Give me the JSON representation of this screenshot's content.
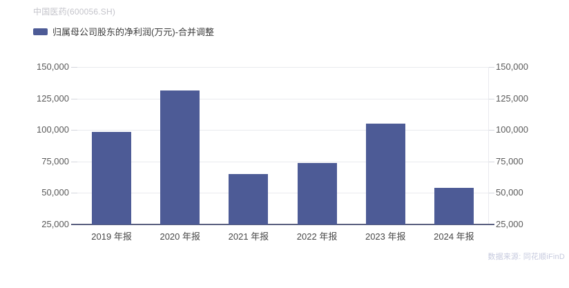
{
  "header": {
    "title": "中国医药(600056.SH)",
    "source": "数据来源: 同花顺iFinD"
  },
  "legend": {
    "label": "归属母公司股东的净利润(万元)-合并调整",
    "marker_color": "#4d5b96"
  },
  "chart_data": {
    "type": "bar",
    "title": "归属母公司股东的净利润(万元)-合并调整",
    "categories": [
      "2019 年报",
      "2020 年报",
      "2021 年报",
      "2022 年报",
      "2023 年报",
      "2024 年报"
    ],
    "values": [
      98400,
      131600,
      65000,
      73600,
      105000,
      53900
    ],
    "xlabel": "",
    "ylabel": "",
    "ylim": [
      25000,
      150000
    ],
    "ytick_values": [
      150000,
      125000,
      100000,
      75000,
      50000,
      25000
    ],
    "ytick_labels": [
      "150,000",
      "125,000",
      "100,000",
      "75,000",
      "50,000",
      "25,000"
    ],
    "grid": true,
    "dual_y_axis": true,
    "legend_position": "top-left",
    "bar_color": "#4d5b96"
  },
  "colors": {
    "bar": "#4d5b96",
    "axis_line": "#5a6080",
    "gridline": "#e9eaee",
    "tick": "#d4d6dd",
    "title_text": "#c3c3ca",
    "legend_text": "#3a3a3a",
    "y_label_text": "#595959",
    "x_label_text": "#474747",
    "source_text": "#c6cade"
  }
}
